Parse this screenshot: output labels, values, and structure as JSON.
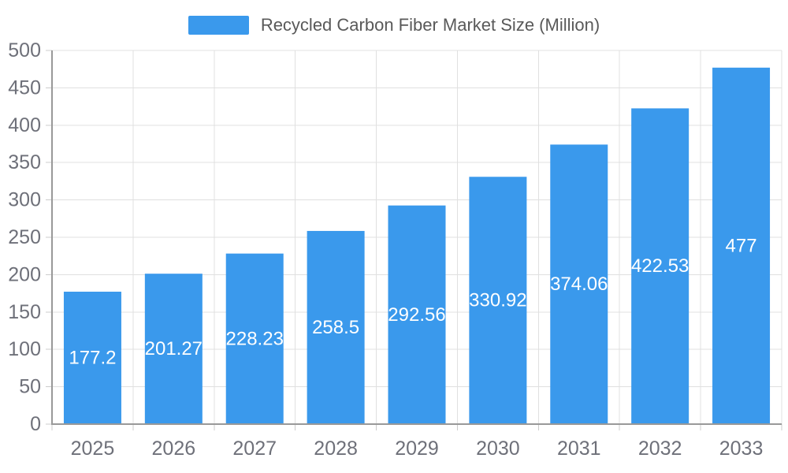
{
  "legend": {
    "label": "Recycled Carbon Fiber Market Size (Million)"
  },
  "chart_data": {
    "type": "bar",
    "title": "Recycled Carbon Fiber Market Size (Million)",
    "categories": [
      "2025",
      "2026",
      "2027",
      "2028",
      "2029",
      "2030",
      "2031",
      "2032",
      "2033"
    ],
    "values": [
      177.2,
      201.27,
      228.23,
      258.5,
      292.56,
      330.92,
      374.06,
      422.53,
      477
    ],
    "value_labels": [
      "177.2",
      "201.27",
      "228.23",
      "258.5",
      "292.56",
      "330.92",
      "374.06",
      "422.53",
      "477"
    ],
    "xlabel": "",
    "ylabel": "",
    "ylim": [
      0,
      500
    ],
    "ytick_step": 50,
    "ytick_labels": [
      "0",
      "50",
      "100",
      "150",
      "200",
      "250",
      "300",
      "350",
      "400",
      "450",
      "500"
    ],
    "legend_position": "top",
    "grid": true,
    "colors": {
      "bar": "#3a99ec",
      "value_label": "#ffffff",
      "axis_label": "#6e7079",
      "legend_text": "#595959",
      "grid_line": "#e0e0e0",
      "axis_line": "#999999",
      "tick": "#cccccc",
      "background": "#ffffff"
    }
  }
}
